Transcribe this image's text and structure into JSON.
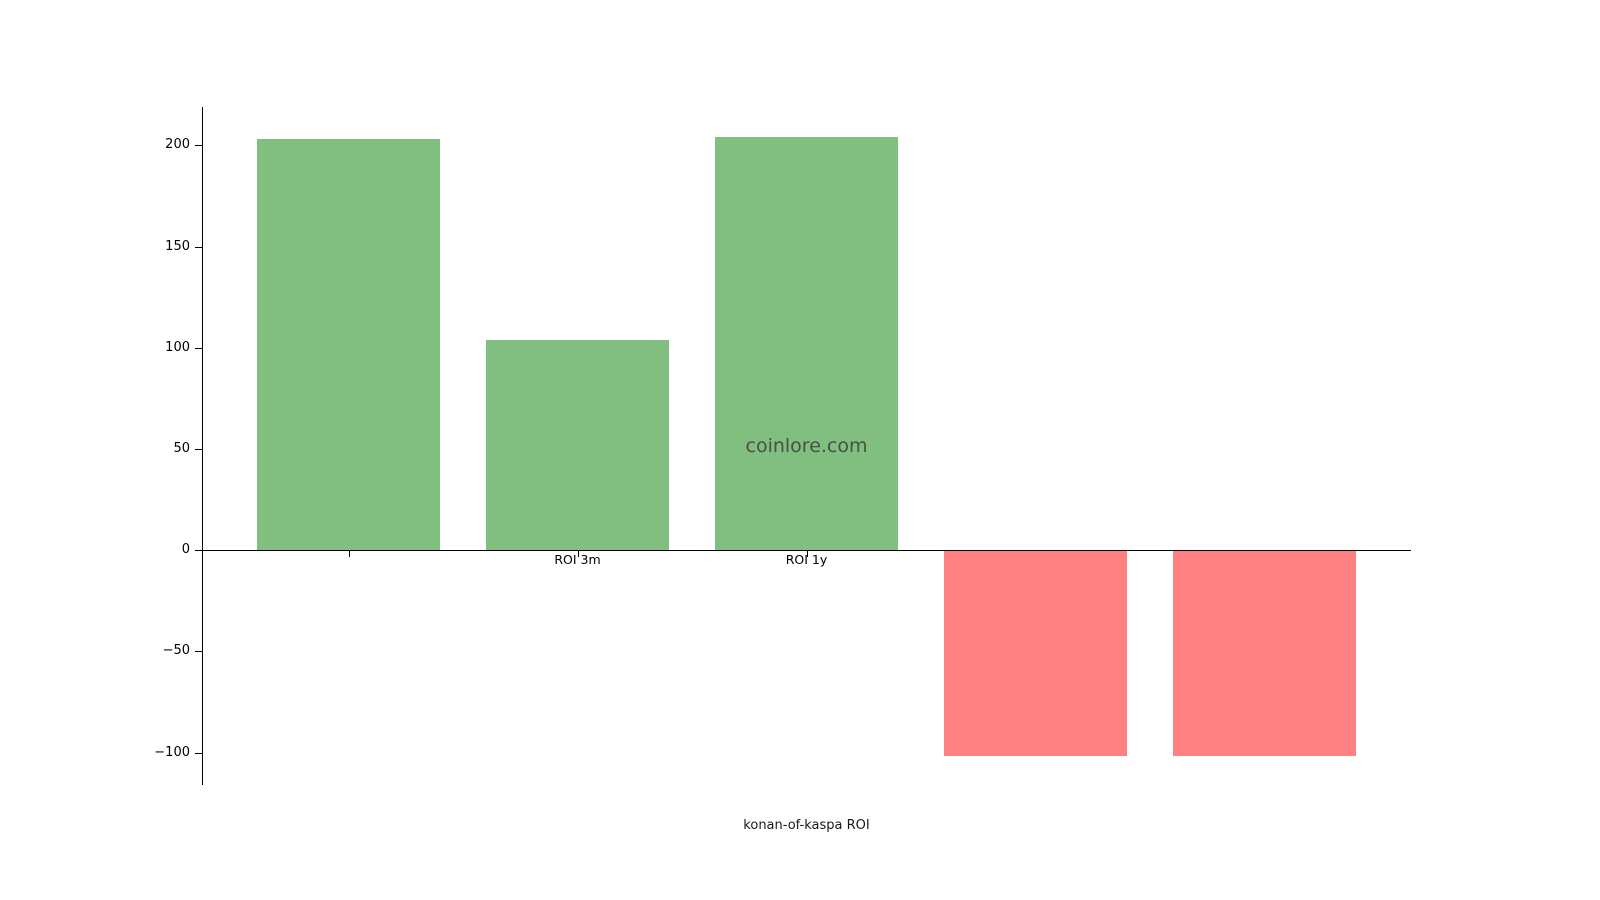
{
  "chart_data": {
    "type": "bar",
    "title": "konan-of-kaspa ROI",
    "watermark": "coinlore.com",
    "categories": [
      "",
      "ROI 3m",
      "ROI 1y",
      "",
      ""
    ],
    "values": [
      203,
      104,
      204,
      -101,
      -101
    ],
    "tick_visible": [
      true,
      true,
      true,
      false,
      false
    ],
    "yticks": [
      {
        "v": 200,
        "label": "200"
      },
      {
        "v": 150,
        "label": "150"
      },
      {
        "v": 100,
        "label": "100"
      },
      {
        "v": 50,
        "label": "50"
      },
      {
        "v": 0,
        "label": "0"
      },
      {
        "v": -50,
        "label": "−50"
      },
      {
        "v": -100,
        "label": "−100"
      }
    ],
    "ylim": [
      -116,
      219
    ],
    "xlabel": "",
    "ylabel": "",
    "grid": false,
    "legend": "none",
    "colors": {
      "positive": "#80bf80",
      "negative": "#ff8080",
      "axis": "#000000",
      "tick_text": "#000000",
      "watermark_text": "#3d3d3d",
      "background": "#ffffff"
    }
  }
}
